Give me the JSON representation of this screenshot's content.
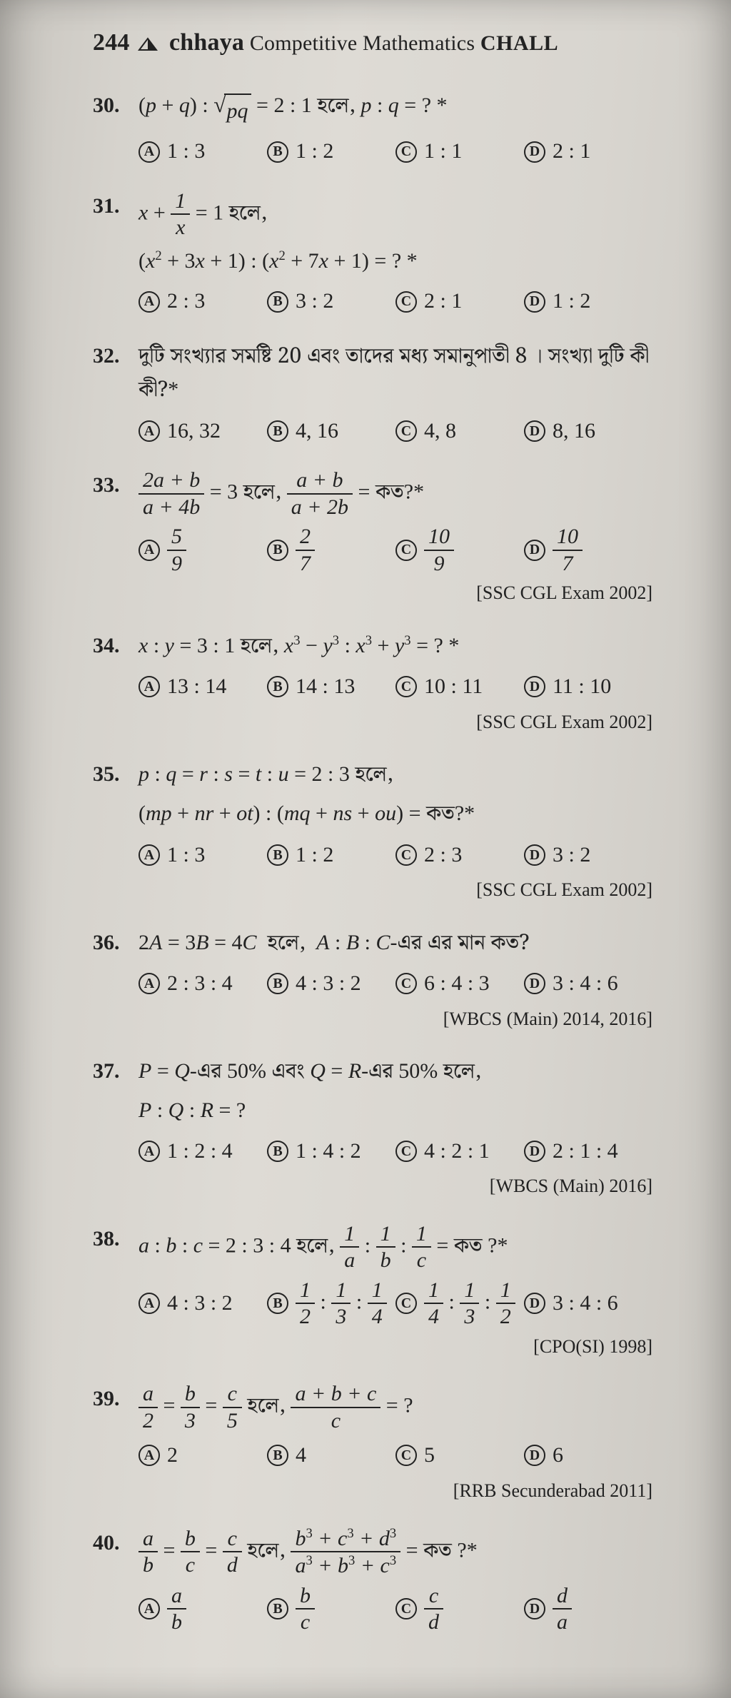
{
  "header": {
    "page_number": "244",
    "brand": "chhaya",
    "subtitle": "Competitive Mathematics",
    "tail": "CHALL"
  },
  "questions": [
    {
      "num": "30.",
      "stem_html": "(<span class='math'>p</span> + <span class='math'>q</span>) : <span class='sqrt'><span class='rad'>√</span><span class='arg'>pq</span></span> = 2 : 1 <span class='beng'>হলে,</span> <span class='math'>p</span> : <span class='math'>q</span> = ? *",
      "opts": [
        "1 : 3",
        "1 : 2",
        "1 : 1",
        "2 : 1"
      ],
      "opt_class": ""
    },
    {
      "num": "31.",
      "stem_html": "<span class='math'>x</span> + <span class='frac'><span class='n'>1</span><span class='d'>x</span></span> = 1 <span class='beng'>হলে,</span>",
      "cont_html": "(<span class='math'>x</span><span class='sup'>2</span> + 3<span class='math'>x</span> + 1) : (<span class='math'>x</span><span class='sup'>2</span> + 7<span class='math'>x</span> + 1) = ? *",
      "opts": [
        "2 : 3",
        "3 : 2",
        "2 : 1",
        "1 : 2"
      ],
      "opt_class": ""
    },
    {
      "num": "32.",
      "stem_html": "<span class='beng'>দুটি সংখ্যার সমষ্টি 20 এবং তাদের মধ্য সমানুপাতী 8 । সংখ্যা দুটি কী কী?</span>*",
      "opts": [
        "16, 32",
        "4, 16",
        "4, 8",
        "8, 16"
      ],
      "opt_class": ""
    },
    {
      "num": "33.",
      "stem_html": "<span class='frac'><span class='n'>2a + b</span><span class='d'>a + 4b</span></span> = 3 <span class='beng'>হলে,</span> <span class='frac'><span class='n'>a + b</span><span class='d'>a + 2b</span></span> = <span class='beng'>কত</span>?*",
      "opts_html": [
        "<span class='frac'><span class='n'>5</span><span class='d'>9</span></span>",
        "<span class='frac'><span class='n'>2</span><span class='d'>7</span></span>",
        "<span class='frac'><span class='n'>10</span><span class='d'>9</span></span>",
        "<span class='frac'><span class='n'>10</span><span class='d'>7</span></span>"
      ],
      "exam": "[SSC CGL Exam 2002]",
      "opt_class": ""
    },
    {
      "num": "34.",
      "stem_html": "<span class='math'>x</span> : <span class='math'>y</span> = 3 : 1 <span class='beng'>হলে,</span> <span class='math'>x</span><span class='sup'>3</span> − <span class='math'>y</span><span class='sup'>3</span> : <span class='math'>x</span><span class='sup'>3</span> + <span class='math'>y</span><span class='sup'>3</span> = ? *",
      "opts": [
        "13 : 14",
        "14 : 13",
        "10 : 11",
        "11 : 10"
      ],
      "exam": "[SSC CGL Exam 2002]",
      "opt_class": ""
    },
    {
      "num": "35.",
      "stem_html": "<span class='math'>p</span> : <span class='math'>q</span> = <span class='math'>r</span> : <span class='math'>s</span> = <span class='math'>t</span> : <span class='math'>u</span> = 2 : 3 <span class='beng'>হলে,</span>",
      "cont_html": "(<span class='math'>mp</span> + <span class='math'>nr</span> + <span class='math'>ot</span>) : (<span class='math'>mq</span> + <span class='math'>ns</span> + <span class='math'>ou</span>) = <span class='beng'>কত</span>?*",
      "opts": [
        "1 : 3",
        "1 : 2",
        "2 : 3",
        "3 : 2"
      ],
      "exam": "[SSC CGL Exam 2002]",
      "opt_class": ""
    },
    {
      "num": "36.",
      "stem_html": "2<span class='math'>A</span> = 3<span class='math'>B</span> = 4<span class='math'>C</span>&nbsp; <span class='beng'>হলে,</span>&nbsp; <span class='math'>A</span> : <span class='math'>B</span> : <span class='math'>C</span>-<span class='beng'>এর এর মান কত?</span>",
      "opts": [
        "2 : 3 : 4",
        "4 : 3 : 2",
        "6 : 4 : 3",
        "3 : 4 : 6"
      ],
      "exam": "[WBCS (Main) 2014, 2016]",
      "opt_class": ""
    },
    {
      "num": "37.",
      "stem_html": "<span class='math'>P</span> = <span class='math'>Q</span>-<span class='beng'>এর</span> 50% <span class='beng'>এবং</span> <span class='math'>Q</span> = <span class='math'>R</span>-<span class='beng'>এর</span> 50% <span class='beng'>হলে,</span>",
      "cont_html": "<span class='math'>P</span> : <span class='math'>Q</span> : <span class='math'>R</span> = ?",
      "opts": [
        "1 : 2 : 4",
        "1 : 4 : 2",
        "4 : 2 : 1",
        "2 : 1 : 4"
      ],
      "exam": "[WBCS (Main) 2016]",
      "opt_class": ""
    },
    {
      "num": "38.",
      "stem_html": "<span class='math'>a</span> : <span class='math'>b</span> : <span class='math'>c</span> = 2 : 3 : 4 <span class='beng'>হলে,</span> <span class='frac'><span class='n'>1</span><span class='d'>a</span></span> : <span class='frac'><span class='n'>1</span><span class='d'>b</span></span> : <span class='frac'><span class='n'>1</span><span class='d'>c</span></span> = <span class='beng'>কত</span> ?*",
      "opts_html": [
        "4 : 3 : 2",
        "<span class='frac'><span class='n'>1</span><span class='d'>2</span></span> : <span class='frac'><span class='n'>1</span><span class='d'>3</span></span> : <span class='frac'><span class='n'>1</span><span class='d'>4</span></span>",
        "<span class='frac'><span class='n'>1</span><span class='d'>4</span></span> : <span class='frac'><span class='n'>1</span><span class='d'>3</span></span> : <span class='frac'><span class='n'>1</span><span class='d'>2</span></span>",
        "3 : 4 : 6"
      ],
      "exam": "[CPO(SI) 1998]",
      "opt_class": ""
    },
    {
      "num": "39.",
      "stem_html": "<span class='frac'><span class='n'>a</span><span class='d'>2</span></span> = <span class='frac'><span class='n'>b</span><span class='d'>3</span></span> = <span class='frac'><span class='n'>c</span><span class='d'>5</span></span> <span class='beng'>হলে,</span> <span class='frac'><span class='n'>a + b + c</span><span class='d'>c</span></span> = ?",
      "opts": [
        "2",
        "4",
        "5",
        "6"
      ],
      "exam": "[RRB Secunderabad 2011]",
      "opt_class": ""
    },
    {
      "num": "40.",
      "stem_html": "<span class='frac'><span class='n'>a</span><span class='d'>b</span></span> = <span class='frac'><span class='n'>b</span><span class='d'>c</span></span> = <span class='frac'><span class='n'>c</span><span class='d'>d</span></span> <span class='beng'>হলে,</span> <span class='frac'><span class='n'>b<span class='sup'>3</span> + c<span class='sup'>3</span> + d<span class='sup'>3</span></span><span class='d'>a<span class='sup'>3</span> + b<span class='sup'>3</span> + c<span class='sup'>3</span></span></span> = <span class='beng'>কত</span> ?*",
      "opts_html": [
        "<span class='frac'><span class='n'>a</span><span class='d'>b</span></span>",
        "<span class='frac'><span class='n'>b</span><span class='d'>c</span></span>",
        "<span class='frac'><span class='n'>c</span><span class='d'>d</span></span>",
        "<span class='frac'><span class='n'>d</span><span class='d'>a</span></span>"
      ],
      "opt_class": ""
    }
  ],
  "opt_labels": [
    "A",
    "B",
    "C",
    "D"
  ],
  "colors": {
    "text": "#222",
    "page_bg": "#d6d3cd"
  }
}
